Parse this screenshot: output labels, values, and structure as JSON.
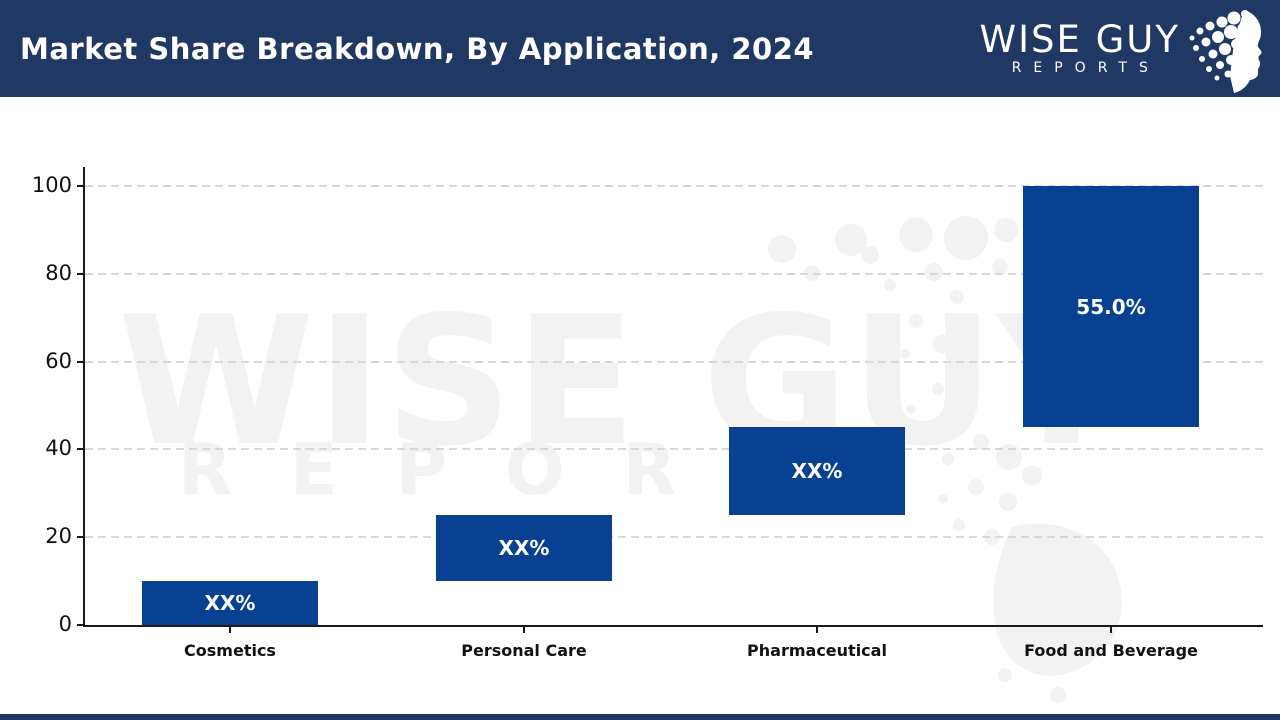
{
  "header": {
    "title": "Market Share Breakdown, By Application, 2024",
    "logo": {
      "line1": "WISE GUY",
      "line2": "REPORTS"
    }
  },
  "watermark": {
    "line1": "WISE GUY",
    "line2": "REPORTS"
  },
  "colors": {
    "header_navy": "#1f3864",
    "bar_blue": "#084191",
    "gridline": "#d8d8d8",
    "axis": "#1a1a1a",
    "watermark": "#f2f2f2",
    "bar_label": "#ffffff"
  },
  "chart_data": {
    "type": "bar",
    "subtype": "waterfall-floating-bars",
    "title": "Market Share Breakdown, By Application, 2024",
    "categories": [
      "Cosmetics",
      "Personal Care",
      "Pharmaceutical",
      "Food and Beverage"
    ],
    "bars": [
      {
        "category": "Cosmetics",
        "label": "XX%",
        "start": 0,
        "end": 10,
        "value": 10
      },
      {
        "category": "Personal Care",
        "label": "XX%",
        "start": 10,
        "end": 25,
        "value": 15
      },
      {
        "category": "Pharmaceutical",
        "label": "XX%",
        "start": 25,
        "end": 45,
        "value": 20
      },
      {
        "category": "Food and Beverage",
        "label": "55.0%",
        "start": 45,
        "end": 100,
        "value": 55
      }
    ],
    "yticks": [
      0,
      20,
      40,
      60,
      80,
      100
    ],
    "ylim": [
      0,
      100
    ],
    "xlabel": "",
    "ylabel": "",
    "grid": "horizontal-dashed",
    "legend": "none"
  }
}
